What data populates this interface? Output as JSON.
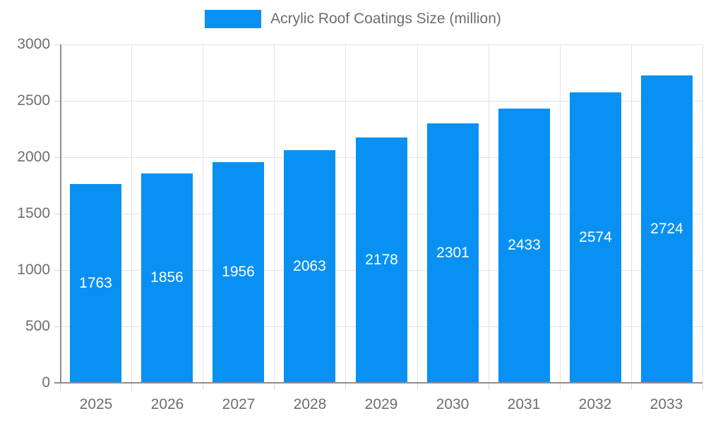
{
  "chart_data": {
    "type": "bar",
    "title": "Acrylic Roof Coatings Size (million)",
    "legend": {
      "position": "top-center",
      "label": "Acrylic Roof Coatings Size (million)"
    },
    "categories": [
      "2025",
      "2026",
      "2027",
      "2028",
      "2029",
      "2030",
      "2031",
      "2032",
      "2033"
    ],
    "series": [
      {
        "name": "Acrylic Roof Coatings Size (million)",
        "values": [
          1763,
          1856,
          1956,
          2063,
          2178,
          2301,
          2433,
          2574,
          2724
        ]
      }
    ],
    "value_labels": [
      "1763",
      "1856",
      "1956",
      "2063",
      "2178",
      "2301",
      "2433",
      "2574",
      "2724"
    ],
    "value_label_position": "inside-center",
    "xlabel": "",
    "ylabel": "",
    "ylim": [
      0,
      3000
    ],
    "y_ticks": [
      0,
      500,
      1000,
      1500,
      2000,
      2500,
      3000
    ],
    "grid": "on",
    "colors": {
      "bar": "#0891f2",
      "grid": "#e3e3e3",
      "axis": "#8f8f8f",
      "tick": "#d9d9d9",
      "axis_text": "#6e6e6e",
      "value_text": "#ffffff"
    }
  }
}
